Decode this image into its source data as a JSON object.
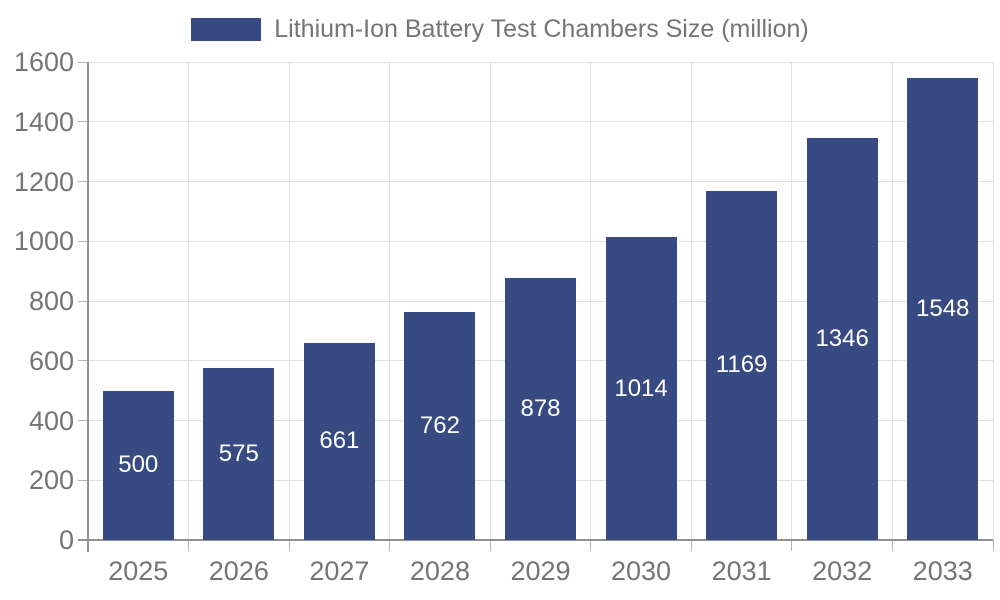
{
  "chart_data": {
    "type": "bar",
    "title": "Lithium-Ion Battery Test Chambers Size (million)",
    "legend": [
      {
        "label": "Lithium-Ion Battery Test Chambers Size (million)",
        "swatch_color": "#384a82"
      }
    ],
    "categories": [
      "2025",
      "2026",
      "2027",
      "2028",
      "2029",
      "2030",
      "2031",
      "2032",
      "2033"
    ],
    "values": [
      500,
      575,
      661,
      762,
      878,
      1014,
      1169,
      1346,
      1548
    ],
    "value_labels": [
      "500",
      "575",
      "661",
      "762",
      "878",
      "1014",
      "1169",
      "1346",
      "1548"
    ],
    "xlabel": "",
    "ylabel": "",
    "ylim": [
      0,
      1600
    ],
    "ytick_step": 200,
    "yticks": [
      0,
      200,
      400,
      600,
      800,
      1000,
      1200,
      1400,
      1600
    ],
    "ytick_labels": [
      "0",
      "200",
      "400",
      "600",
      "800",
      "1000",
      "1200",
      "1400",
      "1600"
    ],
    "grid": true,
    "legend_position": "top-center",
    "colors": {
      "bar": "#384a82",
      "bar_value_text": "#ffffff",
      "axis_text": "#757575",
      "legend_text": "#757575",
      "gridline": "#e0e0e0",
      "axis_line": "#919191",
      "tick": "#b5b5b5",
      "background": "#ffffff"
    }
  }
}
